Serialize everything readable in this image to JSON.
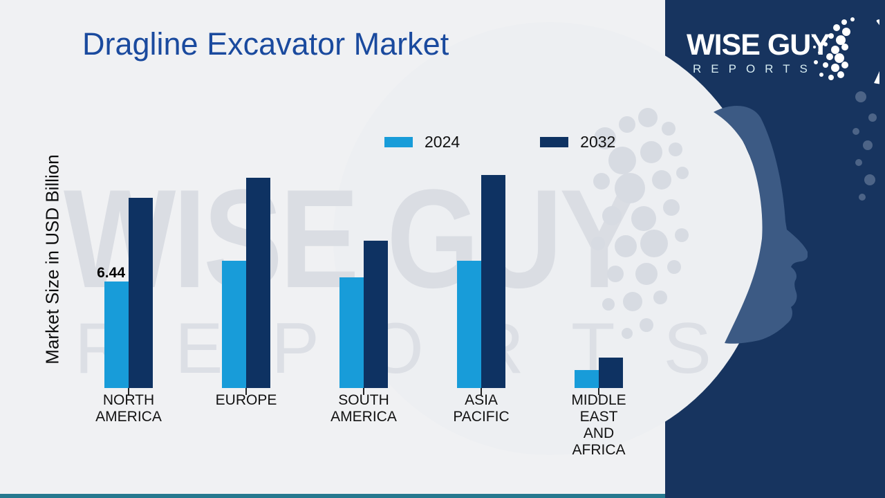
{
  "title": "Dragline Excavator Market",
  "brand": {
    "name": "WISE GUY",
    "subname": "REPORTS"
  },
  "watermark": {
    "line1": "WISE GUY",
    "line2": "REPORTS"
  },
  "colors": {
    "title_blue": "#1a4a9e",
    "panel_navy": "#17345f",
    "face_blue": "#3c5a84",
    "accent_strip": "#26798f",
    "series_2024": "#189cd9",
    "series_2032": "#0e3262"
  },
  "chart_data": {
    "type": "bar",
    "title": "Dragline Excavator Market",
    "ylabel": "Market Size in USD Billion",
    "xlabel": "",
    "ylim": [
      0,
      14
    ],
    "grid": false,
    "legend_position": "top",
    "categories": [
      "NORTH AMERICA",
      "EUROPE",
      "SOUTH AMERICA",
      "ASIA PACIFIC",
      "MIDDLE EAST AND AFRICA"
    ],
    "category_lines": [
      [
        "NORTH",
        "AMERICA"
      ],
      [
        "EUROPE"
      ],
      [
        "SOUTH",
        "AMERICA"
      ],
      [
        "ASIA",
        "PACIFIC"
      ],
      [
        "MIDDLE",
        "EAST",
        "AND",
        "AFRICA"
      ]
    ],
    "series": [
      {
        "name": "2024",
        "color": "#189cd9",
        "values": [
          6.44,
          7.7,
          6.7,
          7.7,
          1.1
        ]
      },
      {
        "name": "2032",
        "color": "#0e3262",
        "values": [
          11.5,
          12.7,
          8.9,
          12.9,
          1.85
        ]
      }
    ],
    "annotations": [
      {
        "series": "2024",
        "category": "NORTH AMERICA",
        "text": "6.44"
      }
    ]
  }
}
